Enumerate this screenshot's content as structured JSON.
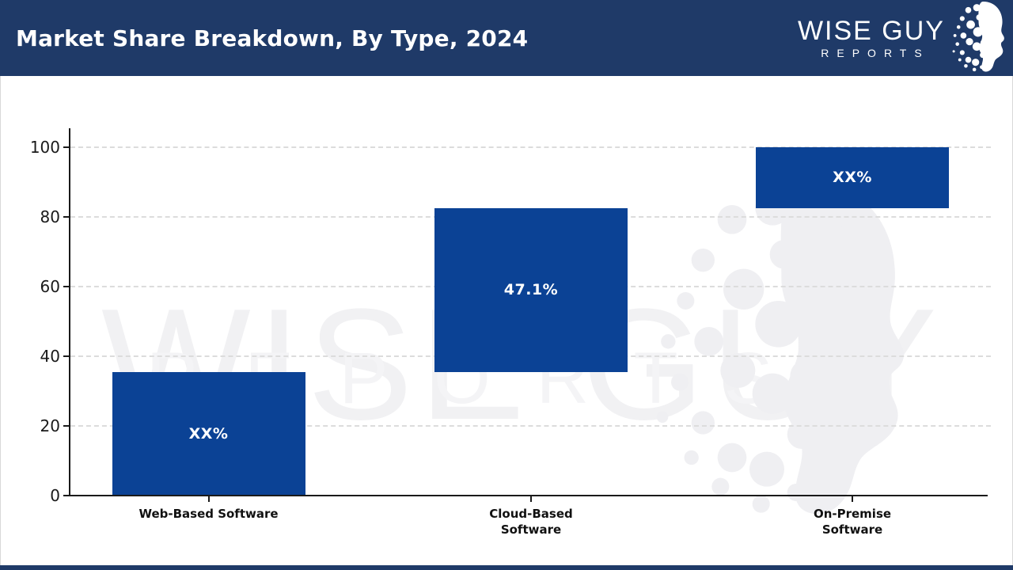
{
  "header": {
    "title": "Market Share Breakdown, By Type, 2024",
    "logo": {
      "line1": "WISE GUY",
      "line2": "REPORTS"
    },
    "bg_color": "#1F3A68",
    "text_color": "#FFFFFF"
  },
  "watermark": {
    "line1": "WISE GUY",
    "line2": "REPORTS"
  },
  "footer": {
    "bg_color": "#1F3A68"
  },
  "chart_data": {
    "type": "bar",
    "variant": "floating range bars (market share breakdown, segments stack to 100%)",
    "title": "Market Share Breakdown, By Type, 2024",
    "categories": [
      "Web-Based Software",
      "Cloud-Based Software",
      "On-Premise Software"
    ],
    "categories_display": [
      {
        "line1": "Web-Based Software",
        "line2": ""
      },
      {
        "line1": "Cloud-Based",
        "line2": "Software"
      },
      {
        "line1": "On-Premise",
        "line2": "Software"
      }
    ],
    "bars": [
      {
        "category": "Web-Based Software",
        "start": 0,
        "end": 35.5,
        "label": "XX%"
      },
      {
        "category": "Cloud-Based Software",
        "start": 35.5,
        "end": 82.6,
        "label": "47.1%"
      },
      {
        "category": "On-Premise Software",
        "start": 82.6,
        "end": 100,
        "label": "XX%"
      }
    ],
    "xlabel": "",
    "ylabel": "",
    "ylim": [
      0,
      100
    ],
    "yticks": [
      0,
      20,
      40,
      60,
      80,
      100
    ],
    "grid": "horizontal dashed gridlines",
    "legend": "none",
    "bar_color": "#0B4295",
    "bar_label_color": "#FFFFFF",
    "axis_color": "#1a1a1a"
  }
}
